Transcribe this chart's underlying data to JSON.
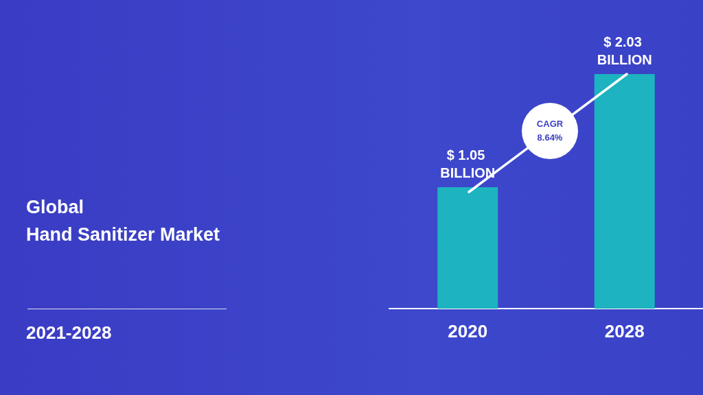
{
  "chart_data": {
    "type": "bar",
    "title": "Global\nHand Sanitizer Market",
    "subtitle": "2021-2028",
    "categories": [
      "2020",
      "2028"
    ],
    "values": [
      1.05,
      2.03
    ],
    "value_labels": [
      "$ 1.05 BILLION",
      "$ 2.03 BILLION"
    ],
    "color": "#1db3c0",
    "relative": false,
    "annotations": [
      "CAGR 8.64%"
    ]
  }
}
